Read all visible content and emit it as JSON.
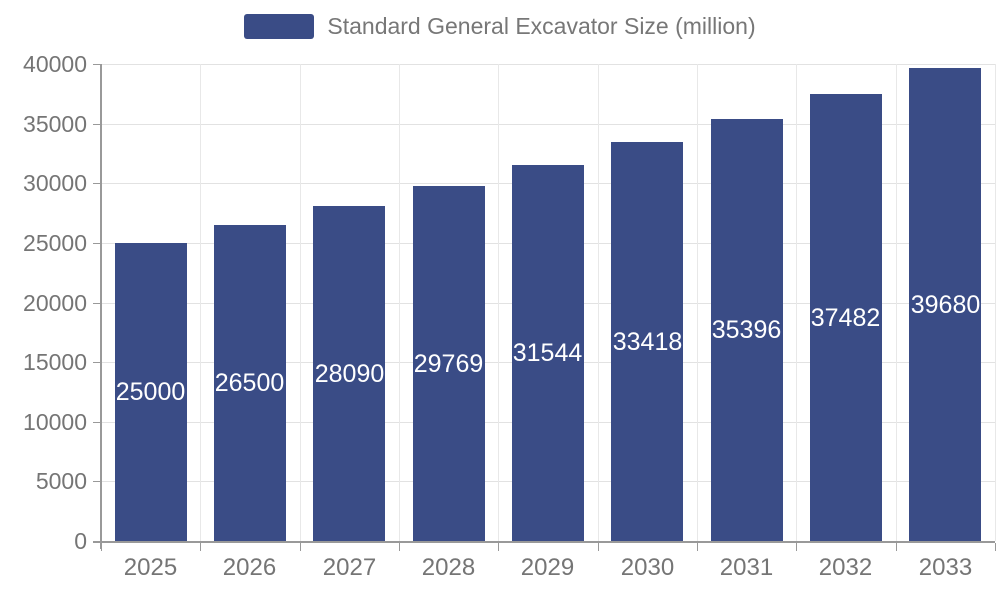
{
  "legend": {
    "label": "Standard General Excavator Size (million)"
  },
  "colors": {
    "bar": "#3A4C86",
    "axis": "#999999",
    "grid_h": "#E2E2E2",
    "grid_v": "#E8E8E8",
    "tick_label": "#757575",
    "legend_text": "#777777",
    "bar_label": "#FFFFFF",
    "background": "#FFFFFF"
  },
  "chart_data": {
    "type": "bar",
    "title": "Standard General Excavator Size (million)",
    "categories": [
      "2025",
      "2026",
      "2027",
      "2028",
      "2029",
      "2030",
      "2031",
      "2032",
      "2033"
    ],
    "values": [
      25000,
      26500,
      28090,
      29769,
      31544,
      33418,
      35396,
      37482,
      39680
    ],
    "xlabel": "",
    "ylabel": "",
    "ylim": [
      0,
      40000
    ],
    "yticks": [
      0,
      5000,
      10000,
      15000,
      20000,
      25000,
      30000,
      35000,
      40000
    ],
    "grid": "horizontal and vertical light gridlines",
    "legend_position": "top-center",
    "bar_label_position": "inside-center",
    "bar_label_color": "#FFFFFF"
  }
}
